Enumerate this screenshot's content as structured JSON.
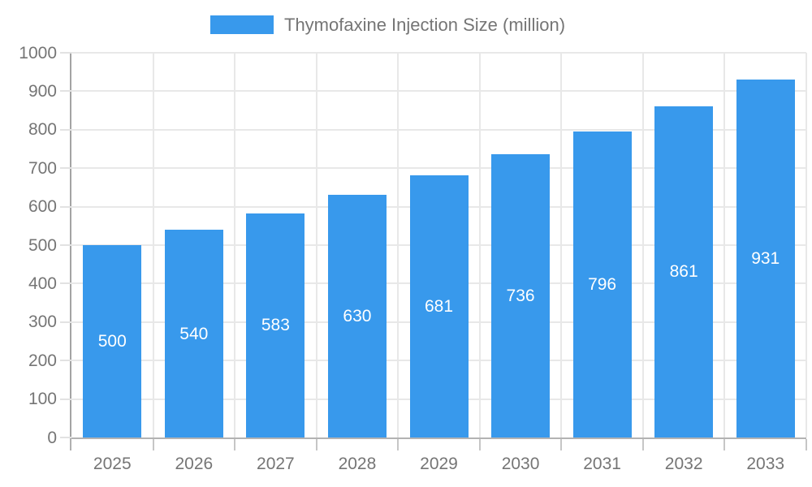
{
  "legend": {
    "label": "Thymofaxine Injection Size (million)"
  },
  "chart_data": {
    "type": "bar",
    "title": "",
    "categories": [
      "2025",
      "2026",
      "2027",
      "2028",
      "2029",
      "2030",
      "2031",
      "2032",
      "2033"
    ],
    "series": [
      {
        "name": "Thymofaxine Injection Size (million)",
        "values": [
          500,
          540,
          583,
          630,
          681,
          736,
          796,
          861,
          931
        ],
        "color": "#3899EC"
      }
    ],
    "xlabel": "",
    "ylabel": "",
    "ylim": [
      0,
      1000
    ],
    "ytick_step": 100,
    "ytick_labels": [
      "0",
      "100",
      "200",
      "300",
      "400",
      "500",
      "600",
      "700",
      "800",
      "900",
      "1000"
    ],
    "grid": true,
    "legend_position": "top",
    "bar_labels_shown": true,
    "bar_label_color": "#ffffff",
    "axis_text_color": "#757575"
  }
}
